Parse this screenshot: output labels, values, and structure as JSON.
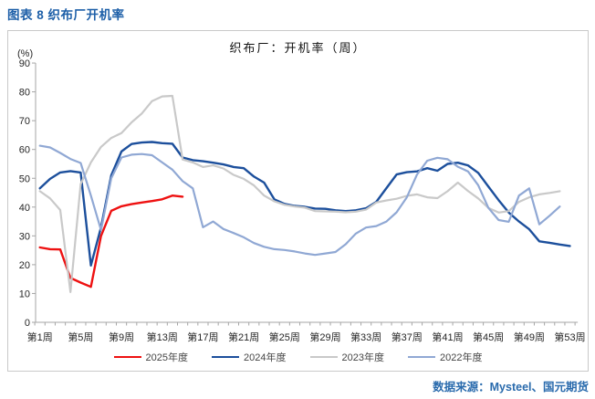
{
  "page": {
    "title": "图表 8 织布厂开机率",
    "source": "数据来源：Mysteel、国元期货"
  },
  "colors": {
    "title_blue": "#1d5fa8",
    "source_blue": "#2a6bad",
    "axis": "#a6a6a6",
    "frame_border": "#c9c9c9",
    "tick_text": "#262626"
  },
  "chart_data": {
    "type": "line",
    "title": "织布厂：开机率（周）",
    "unit_label": "(%)",
    "grid": false,
    "legend_position": "bottom",
    "ylim": [
      0,
      90
    ],
    "y_ticks": [
      0,
      10,
      20,
      30,
      40,
      50,
      60,
      70,
      80,
      90
    ],
    "x_weeks": 53,
    "x_tick_weeks": [
      1,
      5,
      9,
      13,
      17,
      21,
      25,
      29,
      33,
      37,
      41,
      45,
      49,
      53
    ],
    "x_tick_labels": [
      "第1周",
      "第5周",
      "第9周",
      "第13周",
      "第17周",
      "第21周",
      "第25周",
      "第29周",
      "第33周",
      "第37周",
      "第41周",
      "第45周",
      "第49周",
      "第53周"
    ],
    "series": [
      {
        "name": "2025年度",
        "color": "#ee1111",
        "width": 2.4,
        "start_week": 1,
        "values": [
          26,
          25.4,
          25.3,
          15.4,
          13.8,
          12.3,
          30,
          38.7,
          40.3,
          41,
          41.6,
          42.1,
          42.7,
          44,
          43.6
        ]
      },
      {
        "name": "2024年度",
        "color": "#1c4f9c",
        "width": 2.4,
        "start_week": 1,
        "values": [
          46.5,
          49.8,
          52,
          52.5,
          52,
          19.7,
          33,
          51,
          59.3,
          61.9,
          62.4,
          62.6,
          62.2,
          62,
          57.2,
          56.3,
          55.9,
          55.4,
          54.8,
          53.9,
          53.5,
          50.6,
          48.5,
          42.7,
          41.1,
          40.4,
          40.1,
          39.5,
          39.4,
          38.9,
          38.6,
          38.9,
          39.6,
          41.8,
          46.6,
          51.3,
          52.1,
          52.4,
          53.5,
          52.6,
          55,
          55.4,
          54.5,
          51.9,
          47.1,
          42.4,
          38.1,
          35,
          32.3,
          28.1,
          27.6,
          27,
          26.5
        ]
      },
      {
        "name": "2023年度",
        "color": "#c9c9c9",
        "width": 2.2,
        "start_week": 1,
        "values": [
          45.5,
          43,
          39,
          10.5,
          48,
          55.5,
          60.9,
          64,
          65.7,
          69.4,
          72.5,
          76.8,
          78.4,
          78.6,
          56.5,
          55.5,
          53.9,
          54.5,
          53.4,
          51.2,
          49.8,
          47.5,
          44,
          42,
          40.8,
          40.2,
          39.8,
          38.6,
          38.5,
          38.4,
          38.2,
          38.4,
          39.1,
          41.6,
          42.3,
          42.9,
          43.9,
          44.4,
          43.4,
          43.1,
          45.5,
          48.5,
          45.6,
          43,
          39.7,
          38.1,
          38.6,
          41.8,
          43.4,
          44.4,
          44.9,
          45.5
        ]
      },
      {
        "name": "2022年度",
        "color": "#90a8d4",
        "width": 2.2,
        "start_week": 1,
        "values": [
          61.3,
          60.7,
          58.8,
          56.7,
          55.3,
          44,
          32,
          50,
          57.2,
          58.2,
          58.4,
          58,
          55.5,
          53,
          49,
          46.5,
          33,
          35,
          32.4,
          31,
          29.5,
          27.5,
          26.2,
          25.4,
          25.1,
          24.6,
          23.9,
          23.4,
          23.9,
          24.4,
          27.1,
          30.8,
          32.9,
          33.4,
          35,
          38.2,
          43.4,
          51.3,
          56.1,
          57.1,
          56.6,
          54,
          52.4,
          47.6,
          39.7,
          35.5,
          34.9,
          44,
          46.5,
          34,
          37,
          40.2
        ]
      }
    ]
  }
}
